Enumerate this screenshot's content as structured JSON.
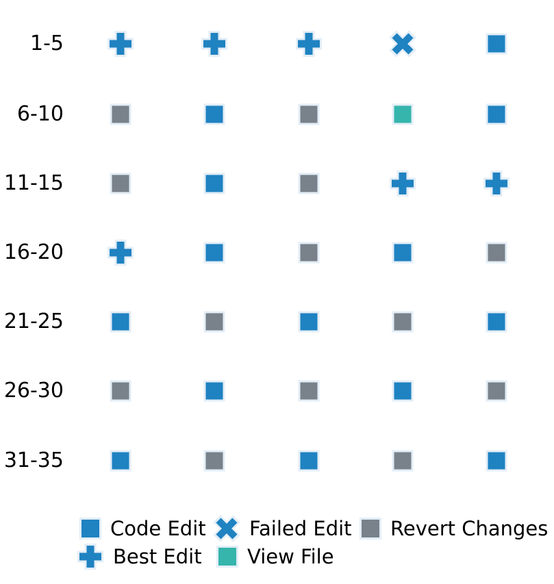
{
  "chart_data": {
    "type": "heatmap",
    "description": "Categorical marker grid of coding-agent actions per step group; 7 row groups x 5 action slots, no axes or gridlines, legend at bottom in two rows",
    "row_labels": [
      "1-5",
      "6-10",
      "11-15",
      "16-20",
      "21-25",
      "26-30",
      "31-35"
    ],
    "columns_per_row": 5,
    "cells": [
      [
        "best",
        "best",
        "best",
        "failed",
        "code"
      ],
      [
        "revert",
        "code",
        "revert",
        "view",
        "code"
      ],
      [
        "revert",
        "code",
        "revert",
        "best",
        "best"
      ],
      [
        "best",
        "code",
        "revert",
        "code",
        "revert"
      ],
      [
        "code",
        "revert",
        "code",
        "revert",
        "code"
      ],
      [
        "revert",
        "code",
        "revert",
        "code",
        "revert"
      ],
      [
        "code",
        "revert",
        "code",
        "revert",
        "code"
      ]
    ],
    "actions": {
      "code": {
        "label": "Code Edit",
        "marker": "square",
        "color": "#1f82c1"
      },
      "failed": {
        "label": "Failed Edit",
        "marker": "x",
        "color": "#1f82c1"
      },
      "revert": {
        "label": "Revert Changes",
        "marker": "square",
        "color": "#79818b"
      },
      "best": {
        "label": "Best Edit",
        "marker": "plus",
        "color": "#1f82c1"
      },
      "view": {
        "label": "View File",
        "marker": "square",
        "color": "#35b5ac"
      }
    },
    "legend": {
      "position": "bottom",
      "rows": [
        [
          "code",
          "failed",
          "revert"
        ],
        [
          "best",
          "view"
        ]
      ]
    },
    "colors": {
      "halo": "#e3eef7",
      "background": "#ffffff",
      "text": "#000000"
    },
    "grid": "off",
    "axes": "hidden"
  }
}
